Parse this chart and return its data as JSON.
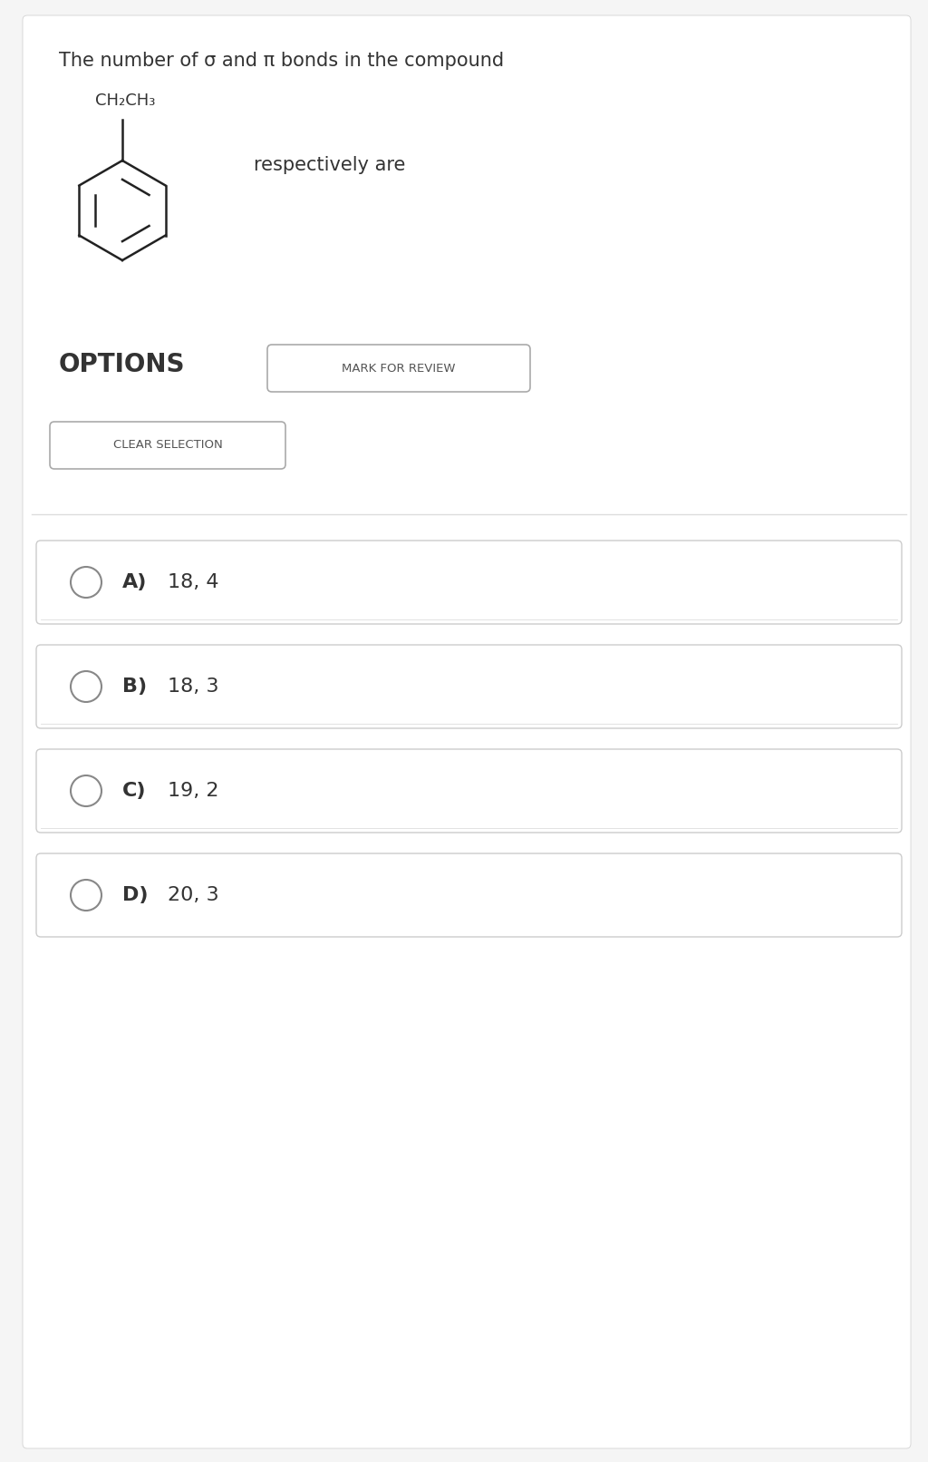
{
  "bg_color": "#f5f5f5",
  "card_color": "#ffffff",
  "title_text": "The number of σ and π bonds in the compound",
  "compound_line1": "CH₂CH₃",
  "respectively_text": "respectively are",
  "options_label": "OPTIONS",
  "mark_review_text": "MARK FOR REVIEW",
  "clear_selection_text": "CLEAR SELECTION",
  "options": [
    {
      "letter": "A)",
      "text": "18, 4"
    },
    {
      "letter": "B)",
      "text": "18, 3"
    },
    {
      "letter": "C)",
      "text": "19, 2"
    },
    {
      "letter": "D)",
      "text": "20, 3"
    }
  ],
  "text_color": "#333333",
  "border_color": "#cccccc",
  "radio_color": "#888888",
  "title_fontsize": 15,
  "option_fontsize": 16
}
